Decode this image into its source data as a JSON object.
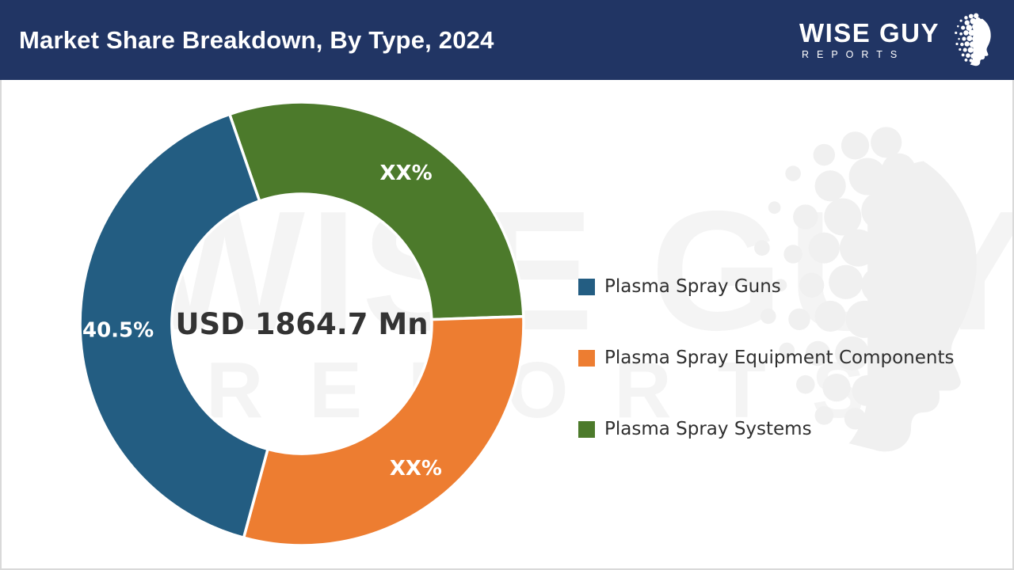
{
  "header": {
    "title": "Market Share Breakdown, By Type, 2024",
    "logo": {
      "line1": "WISE GUY",
      "line2": "REPORTS"
    }
  },
  "watermark": {
    "line1": "WISE GUY",
    "line2": "REPORTS"
  },
  "colors": {
    "header_bg": "#213564",
    "blue": "#235d82",
    "orange": "#ed7d31",
    "green": "#4c7a2b",
    "border": "#d9d9d9"
  },
  "chart_data": {
    "type": "pie",
    "subtype": "donut",
    "title": "Market Share Breakdown, By Type, 2024",
    "center_label": "USD 1864.7 Mn",
    "start_angle_deg": -19,
    "legend_position": "right",
    "segments": [
      {
        "name": "Plasma Spray Systems",
        "value_pct": 29.75,
        "display_label": "XX%",
        "color": "#4c7a2b"
      },
      {
        "name": "Plasma Spray Equipment Components",
        "value_pct": 29.75,
        "display_label": "XX%",
        "color": "#ed7d31"
      },
      {
        "name": "Plasma Spray Guns",
        "value_pct": 40.5,
        "display_label": "40.5%",
        "color": "#235d82"
      }
    ]
  },
  "legend": {
    "items": [
      {
        "label": "Plasma Spray Guns",
        "color": "#235d82"
      },
      {
        "label": "Plasma Spray Equipment Components",
        "color": "#ed7d31"
      },
      {
        "label": "Plasma Spray Systems",
        "color": "#4c7a2b"
      }
    ]
  }
}
